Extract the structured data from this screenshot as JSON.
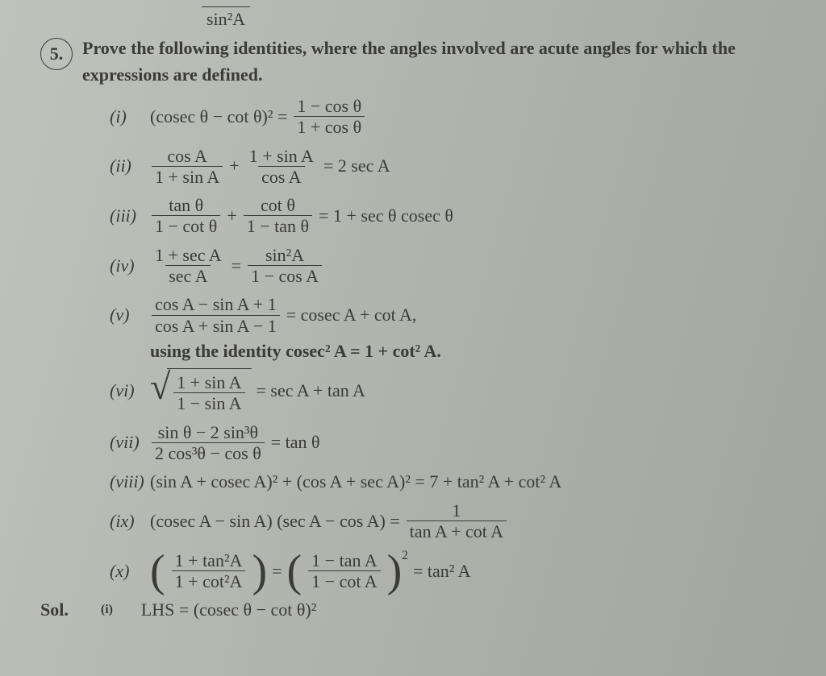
{
  "colors": {
    "text": "#3a3a38",
    "bg_light": "#c0c2bc",
    "bg_dark": "#a2a59e"
  },
  "fragment_top": "sin²A",
  "question": {
    "number": "5.",
    "text": "Prove the following identities, where the angles involved are acute angles for which the expressions are defined."
  },
  "items": {
    "i": {
      "label": "(i)",
      "lhs_a": "(cosec θ − cot θ)² =",
      "frac_num": "1 − cos θ",
      "frac_den": "1 + cos θ"
    },
    "ii": {
      "label": "(ii)",
      "f1_num": "cos A",
      "f1_den": "1 + sin A",
      "plus": "+",
      "f2_num": "1 + sin A",
      "f2_den": "cos A",
      "rhs": "= 2 sec A"
    },
    "iii": {
      "label": "(iii)",
      "f1_num": "tan θ",
      "f1_den": "1 − cot θ",
      "plus": "+",
      "f2_num": "cot θ",
      "f2_den": "1 − tan θ",
      "rhs": "= 1 + sec θ cosec θ"
    },
    "iv": {
      "label": "(iv)",
      "f1_num": "1 + sec A",
      "f1_den": "sec A",
      "eq": "=",
      "f2_num": "sin²A",
      "f2_den": "1 − cos A"
    },
    "v": {
      "label": "(v)",
      "f1_num": "cos A − sin A + 1",
      "f1_den": "cos A + sin A − 1",
      "rhs": "= cosec A + cot A,",
      "hint": "using the identity cosec² A = 1 + cot² A."
    },
    "vi": {
      "label": "(vi)",
      "rad_num": "1 + sin A",
      "rad_den": "1 − sin A",
      "rhs": "= sec A + tan A"
    },
    "vii": {
      "label": "(vii)",
      "f1_num": "sin θ − 2 sin³θ",
      "f1_den": "2 cos³θ − cos θ",
      "rhs": "= tan θ"
    },
    "viii": {
      "label": "(viii)",
      "text": "(sin A + cosec A)² + (cos A + sec A)² = 7 + tan² A + cot² A"
    },
    "ix": {
      "label": "(ix)",
      "lhs": "(cosec A − sin A) (sec A − cos A) =",
      "f_num": "1",
      "f_den": "tan A + cot A"
    },
    "x": {
      "label": "(x)",
      "f1_num": "1 + tan²A",
      "f1_den": "1 + cot²A",
      "eq1": "=",
      "f2_num": "1 − tan A",
      "f2_den": "1 − cot A",
      "sq": "2",
      "rhs": "= tan² A"
    }
  },
  "solution": {
    "label": "Sol.",
    "i_label": "(i)",
    "i_text": "LHS = (cosec θ − cot θ)²"
  }
}
